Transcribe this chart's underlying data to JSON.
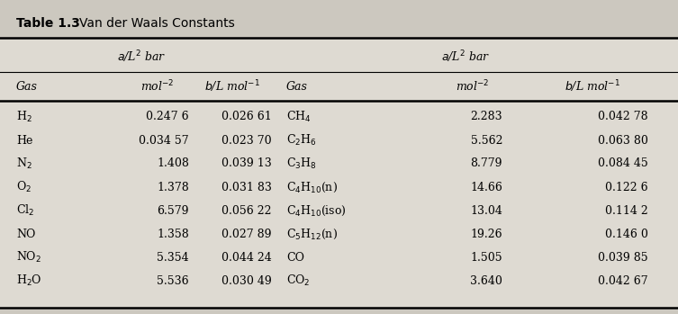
{
  "bg_color": "#ccc8bf",
  "table_bg": "#dedad2",
  "title_bold": "Table 1.3",
  "title_normal": "Van der Waals Constants",
  "left_gas": [
    "H$_2$",
    "He",
    "N$_2$",
    "O$_2$",
    "Cl$_2$",
    "NO",
    "NO$_2$",
    "H$_2$O"
  ],
  "left_a": [
    "0.247 6",
    "0.034 57",
    "1.408",
    "1.378",
    "6.579",
    "1.358",
    "5.354",
    "5.536"
  ],
  "left_b": [
    "0.026 61",
    "0.023 70",
    "0.039 13",
    "0.031 83",
    "0.056 22",
    "0.027 89",
    "0.044 24",
    "0.030 49"
  ],
  "right_gas": [
    "CH$_4$",
    "C$_2$H$_6$",
    "C$_3$H$_8$",
    "C$_4$H$_{10}$(n)",
    "C$_4$H$_{10}$(iso)",
    "C$_5$H$_{12}$(n)",
    "CO",
    "CO$_2$"
  ],
  "right_a": [
    "2.283",
    "5.562",
    "8.779",
    "14.66",
    "13.04",
    "19.26",
    "1.505",
    "3.640"
  ],
  "right_b": [
    "0.042 78",
    "0.063 80",
    "0.084 45",
    "0.122 6",
    "0.114 2",
    "0.146 0",
    "0.039 85",
    "0.042 67"
  ],
  "fs_title": 10,
  "fs_header": 9,
  "fs_data": 9
}
